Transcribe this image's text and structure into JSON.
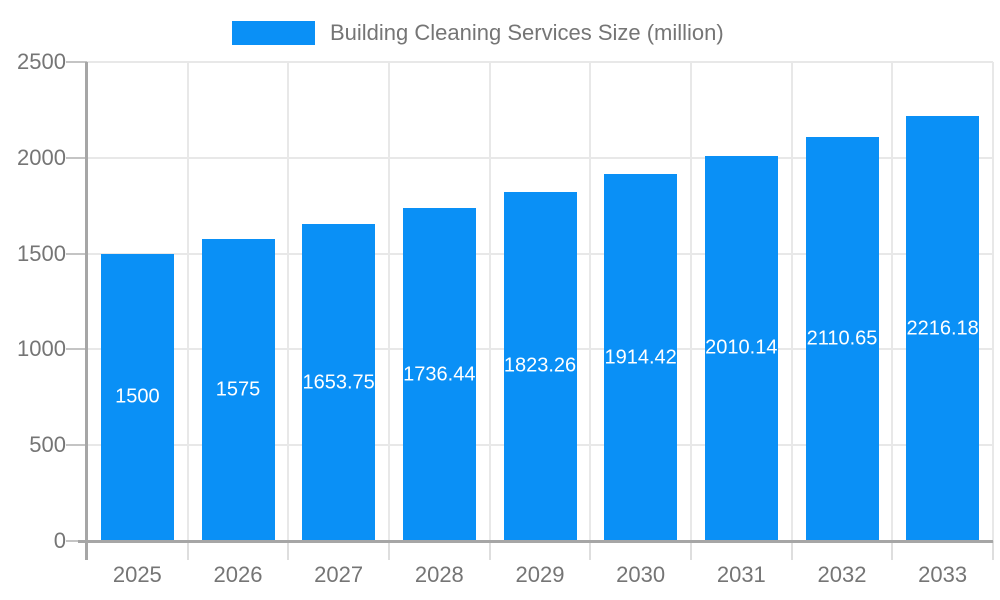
{
  "legend": {
    "label": "Building Cleaning Services Size (million)",
    "swatch_color": "#0a90f6"
  },
  "chart_data": {
    "type": "bar",
    "title": "Building Cleaning Services Size (million)",
    "categories": [
      "2025",
      "2026",
      "2027",
      "2028",
      "2029",
      "2030",
      "2031",
      "2032",
      "2033"
    ],
    "values": [
      1500,
      1575,
      1653.75,
      1736.44,
      1823.26,
      1914.42,
      2010.14,
      2110.65,
      2216.18
    ],
    "value_labels": [
      "1500",
      "1575",
      "1653.75",
      "1736.44",
      "1823.26",
      "1914.42",
      "2010.14",
      "2110.65",
      "2216.18"
    ],
    "xlabel": "",
    "ylabel": "",
    "ylim": [
      0,
      2500
    ],
    "yticks": [
      0,
      500,
      1000,
      1500,
      2000,
      2500
    ],
    "ytick_labels": [
      "0",
      "500",
      "1000",
      "1500",
      "2000",
      "2500"
    ],
    "grid": true,
    "legend_position": "top",
    "bar_color": "#0a90f6",
    "value_label_color": "#ffffff",
    "grid_color": "#e8e8e8",
    "axis_color": "#a6a6a6",
    "text_color": "#757575"
  }
}
